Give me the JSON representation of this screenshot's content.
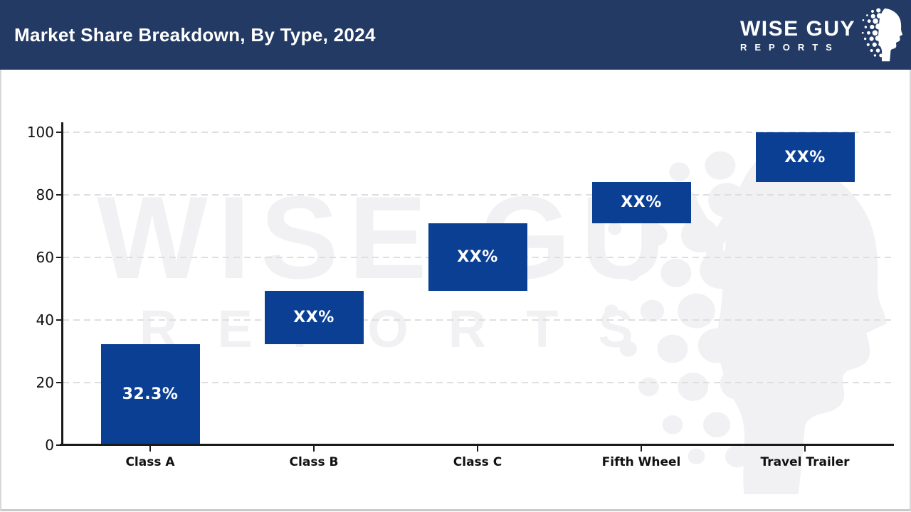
{
  "header": {
    "title": "Market Share Breakdown, By Type, 2024",
    "background": "#223a64",
    "logo": {
      "line1": "WISE GUY",
      "line2": "REPORTS"
    }
  },
  "watermark": {
    "line1": "WISE GUY",
    "line2": "REPORTS",
    "color": "#f1f1f3"
  },
  "chart_data": {
    "type": "bar",
    "subtype": "waterfall",
    "title": "Market Share Breakdown, By Type, 2024",
    "categories": [
      "Class A",
      "Class B",
      "Class C",
      "Fifth Wheel",
      "Travel Trailer"
    ],
    "series": [
      {
        "category": "Class A",
        "start": 0,
        "end": 32.3,
        "label": "32.3%"
      },
      {
        "category": "Class B",
        "start": 32.3,
        "end": 49.3,
        "label": "XX%"
      },
      {
        "category": "Class C",
        "start": 49.3,
        "end": 71.0,
        "label": "XX%"
      },
      {
        "category": "Fifth Wheel",
        "start": 71.0,
        "end": 84.0,
        "label": "XX%"
      },
      {
        "category": "Travel Trailer",
        "start": 84.0,
        "end": 100.0,
        "label": "XX%"
      }
    ],
    "yticks": [
      0,
      20,
      40,
      60,
      80,
      100
    ],
    "ylim": [
      0,
      100
    ],
    "xlabel": "",
    "ylabel": "",
    "grid": "dashed horizontal",
    "legend": "none",
    "bar_color": "#0a3f94",
    "bar_label_color": "#ffffff",
    "axis_color": "#1a1a1a"
  }
}
